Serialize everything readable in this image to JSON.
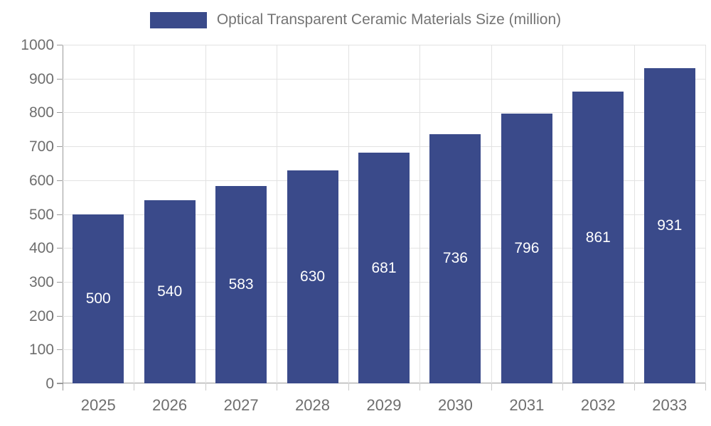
{
  "legend": {
    "label": "Optical Transparent Ceramic Materials Size (million)"
  },
  "chart_data": {
    "type": "bar",
    "title": "Optical Transparent Ceramic Materials Size (million)",
    "categories": [
      "2025",
      "2026",
      "2027",
      "2028",
      "2029",
      "2030",
      "2031",
      "2032",
      "2033"
    ],
    "values": [
      500,
      540,
      583,
      630,
      681,
      736,
      796,
      861,
      931
    ],
    "xlabel": "",
    "ylabel": "",
    "ylim": [
      0,
      1000
    ],
    "ytick_interval": 100,
    "ytick_labels": [
      "0",
      "100",
      "200",
      "300",
      "400",
      "500",
      "600",
      "700",
      "800",
      "900",
      "1000"
    ],
    "grid": true,
    "legend_position": "top",
    "bar_value_labels_inside": true,
    "colors": {
      "bar": "#3A4A8A",
      "bar_label": "#FFFFFF",
      "axis_line": "#999999",
      "grid_line": "#E2E2E2",
      "tick_label": "#6E6E6E",
      "legend_text": "#747474",
      "background": "#FFFFFF"
    }
  }
}
